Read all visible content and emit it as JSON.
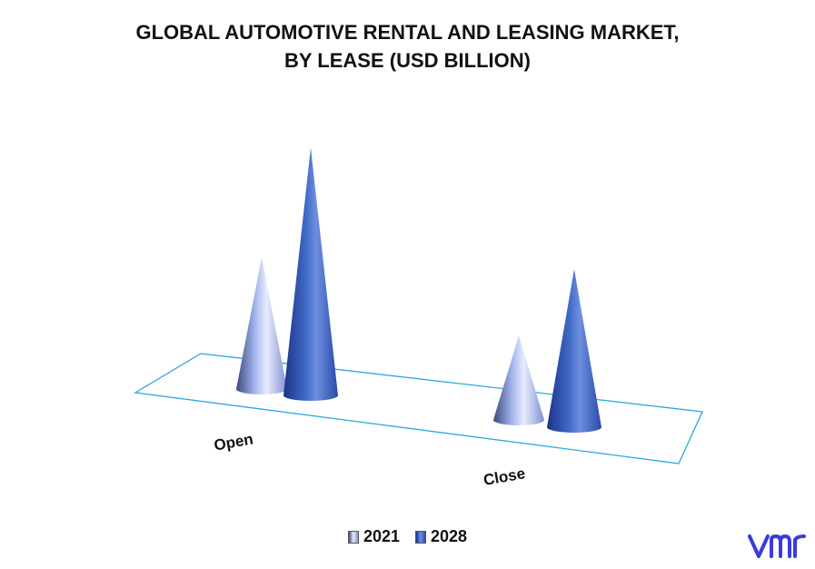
{
  "title_line1": "GLOBAL AUTOMOTIVE RENTAL AND LEASING MARKET,",
  "title_line2": "BY LEASE (USD BILLION)",
  "colors": {
    "floor": "#29a8e0",
    "s2021": "#a9b5e8",
    "s2028": "#3f68c4",
    "logo": "#3a3adf"
  },
  "chart_data": {
    "type": "bar",
    "shape": "cone-3d",
    "categories": [
      "Open",
      "Close"
    ],
    "series": [
      {
        "name": "2021",
        "values": [
          125,
          80
        ]
      },
      {
        "name": "2028",
        "values": [
          235,
          150
        ]
      }
    ],
    "ylim": [
      0,
      250
    ],
    "legend_position": "bottom",
    "grid": false
  },
  "legend": [
    {
      "label": "2021"
    },
    {
      "label": "2028"
    }
  ],
  "logo_text": "vmr"
}
